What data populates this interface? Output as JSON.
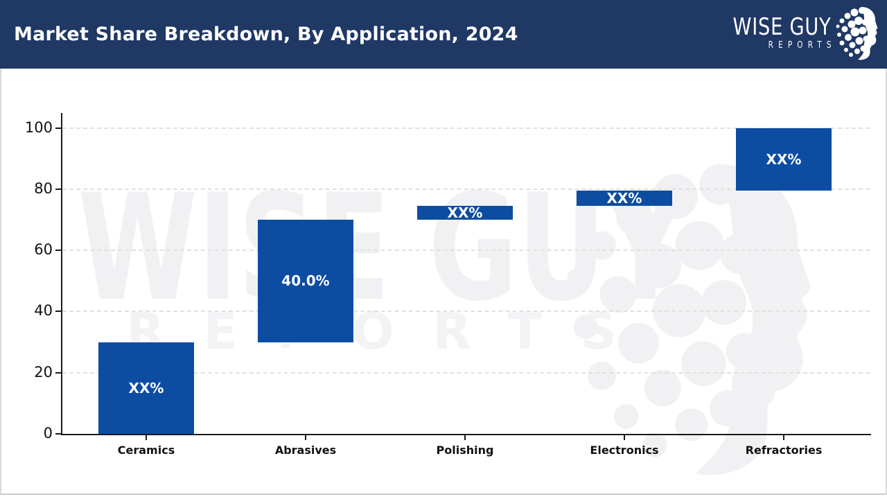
{
  "header": {
    "title": "Market Share Breakdown, By Application, 2024",
    "logo": {
      "line1": "WISE GUY",
      "line2": "REPORTS"
    }
  },
  "watermark": {
    "line1": "WISE GUY",
    "line2": "REPORTS"
  },
  "chart_data": {
    "type": "bar",
    "subtype": "waterfall",
    "title": "Market Share Breakdown, By Application, 2024",
    "categories": [
      "Ceramics",
      "Abrasives",
      "Polishing",
      "Electronics",
      "Refractories"
    ],
    "series": [
      {
        "name": "Market share (%)",
        "segments": [
          {
            "category": "Ceramics",
            "start": 0,
            "end": 30,
            "label": "XX%"
          },
          {
            "category": "Abrasives",
            "start": 30,
            "end": 70,
            "label": "40.0%"
          },
          {
            "category": "Polishing",
            "start": 70,
            "end": 74.5,
            "label": "XX%"
          },
          {
            "category": "Electronics",
            "start": 74.5,
            "end": 79.5,
            "label": "XX%"
          },
          {
            "category": "Refractories",
            "start": 79.5,
            "end": 100,
            "label": "XX%"
          }
        ]
      }
    ],
    "bar_labels": [
      "XX%",
      "40.0%",
      "XX%",
      "XX%",
      "XX%"
    ],
    "ylim": [
      0,
      100
    ],
    "yticks": [
      0,
      20,
      40,
      60,
      80,
      100
    ],
    "xlabel": "",
    "ylabel": "",
    "grid": "horizontal-dashed",
    "legend": "none"
  },
  "colors": {
    "header_bg": "#1f3864",
    "bar": "#0c4da2",
    "bar_label": "#ffffff",
    "axis": "#1a1a1a",
    "grid": "#e0e0e0",
    "watermark": "#f1f1f4"
  }
}
